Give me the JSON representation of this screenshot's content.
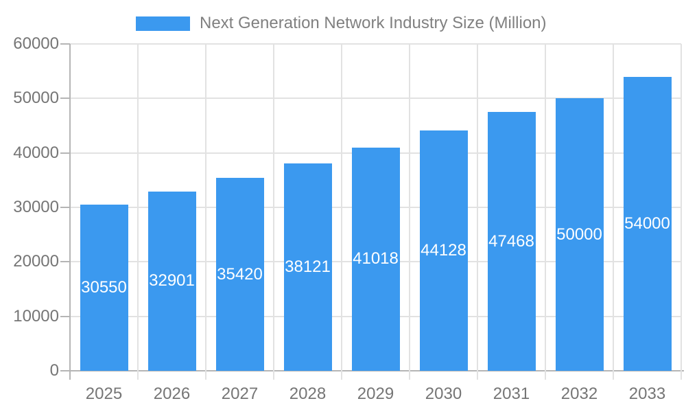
{
  "chart_data": {
    "type": "bar",
    "title": "Next Generation Network Industry Size (Million)",
    "legend": {
      "position": "top",
      "entries": [
        "Next Generation Network Industry Size (Million)"
      ]
    },
    "categories": [
      "2025",
      "2026",
      "2027",
      "2028",
      "2029",
      "2030",
      "2031",
      "2032",
      "2033"
    ],
    "values": [
      30550,
      32901,
      35420,
      38121,
      41018,
      44128,
      47468,
      50000,
      54000
    ],
    "value_labels": [
      "30550",
      "32901",
      "35420",
      "38121",
      "41018",
      "44128",
      "47468",
      "50000",
      "54000"
    ],
    "xlabel": "",
    "ylabel": "",
    "ylim": [
      0,
      60000
    ],
    "yticks": [
      0,
      10000,
      20000,
      30000,
      40000,
      50000,
      60000
    ],
    "ytick_labels": [
      "0",
      "10000",
      "20000",
      "30000",
      "40000",
      "50000",
      "60000"
    ],
    "grid": "both",
    "colors": {
      "bar": "#3b99ef",
      "grid_line": "#e2e2e2",
      "axis_line": "#b5b5b5",
      "axis_text": "#757575",
      "bar_label": "#ffffff",
      "background": "#ffffff"
    }
  }
}
